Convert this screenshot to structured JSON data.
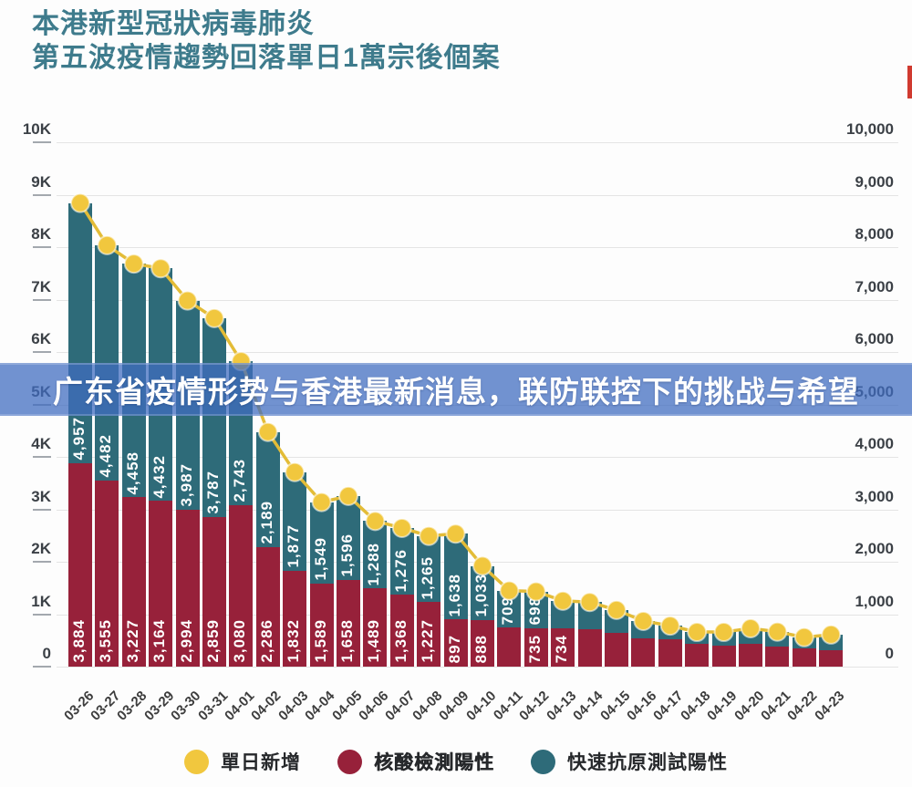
{
  "title": {
    "line1": "本港新型冠狀病毒肺炎",
    "line2": "第五波疫情趨勢回落單日1萬宗後個案"
  },
  "overlay_banner": {
    "text": "广东省疫情形势与香港最新消息，联防联控下的挑战与希望",
    "background": "#3f6cc0",
    "text_color": "#ffffff"
  },
  "y_axis": {
    "left_labels": [
      "10K",
      "9K",
      "8K",
      "7K",
      "6K",
      "5K",
      "4K",
      "3K",
      "2K",
      "1K",
      "0"
    ],
    "right_labels": [
      "10,000",
      "9,000",
      "8,000",
      "7,000",
      "6,000",
      "5,000",
      "4,000",
      "3,000",
      "2,000",
      "1,000",
      "0"
    ],
    "max": 10000,
    "step": 1000
  },
  "legend": {
    "items": [
      {
        "label": "單日新增",
        "color": "#f1c73e",
        "series": "line"
      },
      {
        "label": "核酸檢測陽性",
        "color": "#97213a",
        "series": "bar-red"
      },
      {
        "label": "快速抗原測試陽性",
        "color": "#2e6b79",
        "series": "bar-teal"
      }
    ]
  },
  "chart_data": {
    "type": "stacked-bar-with-line",
    "title": "本港新型冠狀病毒肺炎第五波疫情趨勢回落單日1萬宗後個案",
    "categories": [
      "03-26",
      "03-27",
      "03-28",
      "03-29",
      "03-30",
      "03-31",
      "04-01",
      "04-02",
      "04-03",
      "04-04",
      "04-05",
      "04-06",
      "04-07",
      "04-08",
      "04-09",
      "04-10",
      "04-11",
      "04-12",
      "04-13",
      "04-14",
      "04-15",
      "04-16",
      "04-17",
      "04-18",
      "04-19",
      "04-20",
      "04-21",
      "04-22",
      "04-23"
    ],
    "series": [
      {
        "name": "核酸檢測陽性",
        "type": "bar",
        "stack_order": 0,
        "color": "#97213a",
        "values": [
          3884,
          3555,
          3227,
          3164,
          2994,
          2859,
          3080,
          2286,
          1832,
          1589,
          1658,
          1489,
          1368,
          1227,
          897,
          888,
          740,
          735,
          734,
          710,
          645,
          540,
          520,
          435,
          400,
          435,
          385,
          350,
          315
        ],
        "data_labels": [
          "3,884",
          "3,555",
          "3,227",
          "3,164",
          "2,994",
          "2,859",
          "3,080",
          "2,286",
          "1,832",
          "1,589",
          "1,658",
          "1,489",
          "1,368",
          "1,227",
          "897",
          "888",
          null,
          "735",
          "734",
          null,
          null,
          null,
          null,
          null,
          null,
          null,
          null,
          null,
          null
        ]
      },
      {
        "name": "快速抗原測試陽性",
        "type": "bar",
        "stack_order": 1,
        "color": "#2e6b79",
        "values": [
          4957,
          4482,
          4458,
          4432,
          3987,
          3787,
          2743,
          2189,
          1877,
          1549,
          1596,
          1288,
          1276,
          1265,
          1638,
          1033,
          709,
          698,
          520,
          520,
          435,
          330,
          260,
          225,
          260,
          295,
          280,
          210,
          295
        ],
        "data_labels": [
          "4,957",
          "4,482",
          "4,458",
          "4,432",
          "3,987",
          "3,787",
          "2,743",
          "2,189",
          "1,877",
          "1,549",
          "1,596",
          "1,288",
          "1,276",
          "1,265",
          "1,638",
          "1,033",
          "709",
          "698",
          null,
          null,
          null,
          null,
          null,
          null,
          null,
          null,
          null,
          null,
          null
        ]
      },
      {
        "name": "單日新增",
        "type": "line",
        "color": "#f1c73e",
        "values": [
          8841,
          8037,
          7685,
          7596,
          6981,
          6646,
          5823,
          4475,
          3709,
          3138,
          3254,
          2777,
          2644,
          2492,
          2535,
          1921,
          1449,
          1433,
          1254,
          1230,
          1080,
          870,
          780,
          660,
          660,
          730,
          665,
          560,
          610
        ]
      }
    ],
    "ylim": [
      0,
      10000
    ],
    "grid": "horizontal",
    "legend_position": "bottom",
    "note": "bars after 04-13 and the 04-11 red / 04-13 teal segments carry no printed labels; their values are estimated from bar heights"
  },
  "decor": {
    "edge_strip_color": "#d03a30"
  }
}
